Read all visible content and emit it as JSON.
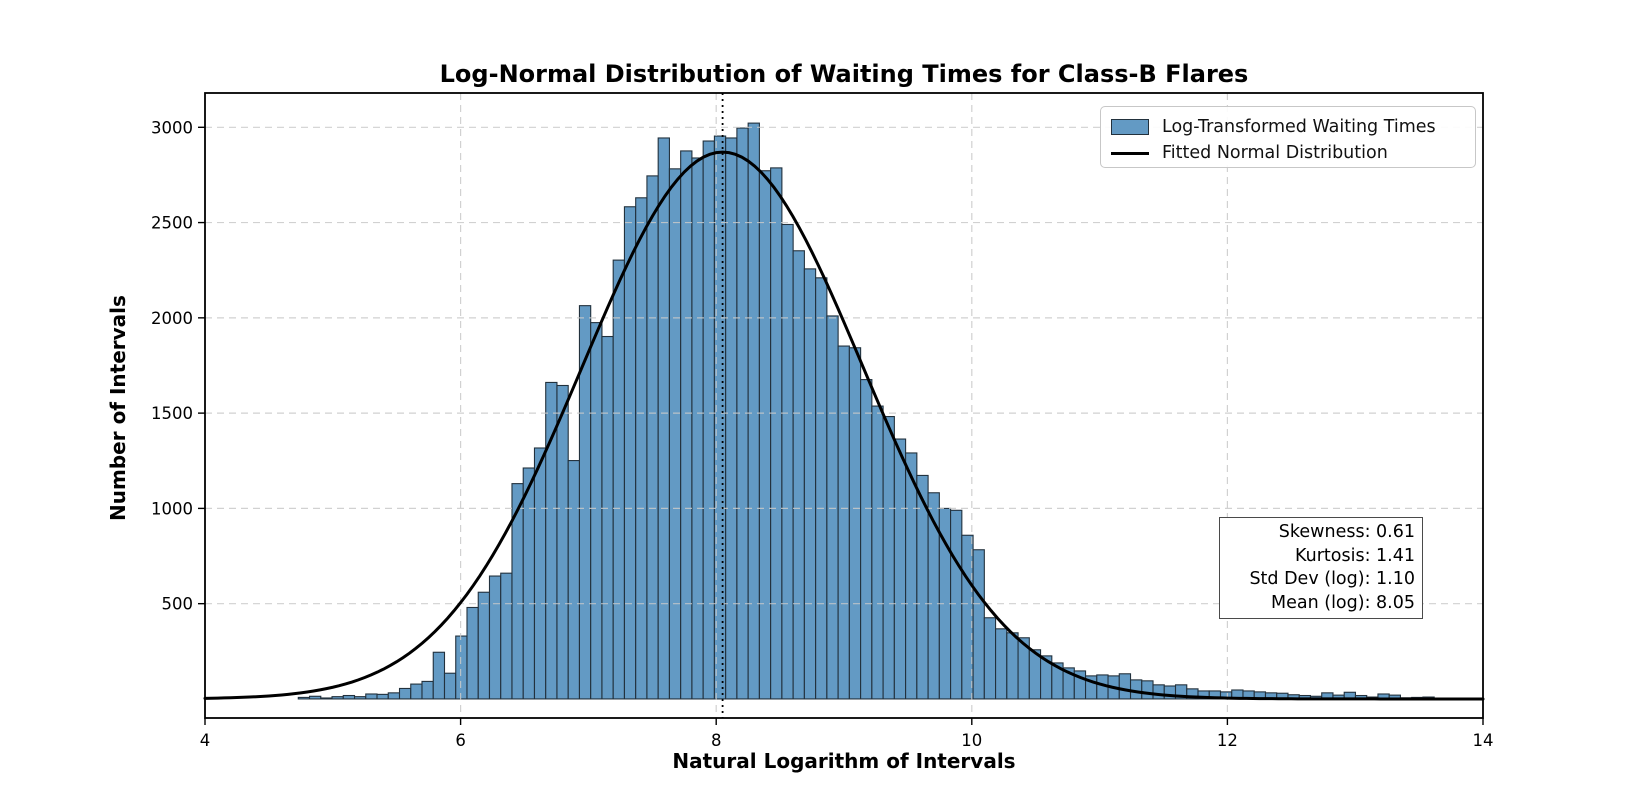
{
  "title": "Log-Normal Distribution of Waiting Times for Class-B Flares",
  "axes": {
    "xlabel": "Natural Logarithm of Intervals",
    "ylabel": "Number of Intervals",
    "x_ticks": [
      4,
      6,
      8,
      10,
      12,
      14
    ],
    "y_ticks": [
      500,
      1000,
      1500,
      2000,
      2500,
      3000
    ],
    "xlim": [
      4,
      14
    ],
    "ylim": [
      -100,
      3180
    ]
  },
  "legend": {
    "items": [
      {
        "label": "Log-Transformed Waiting Times",
        "swatch": "bar"
      },
      {
        "label": "Fitted Normal Distribution",
        "swatch": "line"
      }
    ]
  },
  "stats_box": {
    "lines": [
      "Skewness: 0.61",
      "Kurtosis: 1.41",
      "Std Dev (log): 1.10",
      "Mean (log): 8.05"
    ]
  },
  "colors": {
    "bar_fill": "#639ac4",
    "bar_edge": "#22313d",
    "curve": "#000000",
    "grid": "#c9c9c9",
    "mean_line": "#000000",
    "spine": "#000000",
    "tick_text": "#000000"
  },
  "chart_data": {
    "type": "bar",
    "subtype": "histogram_with_normal_fit",
    "title": "Log-Normal Distribution of Waiting Times for Class-B Flares",
    "xlabel": "Natural Logarithm of Intervals",
    "ylabel": "Number of Intervals",
    "xlim": [
      4,
      14
    ],
    "ylim": [
      -100,
      3180
    ],
    "x_ticks": [
      4,
      6,
      8,
      10,
      12,
      14
    ],
    "y_ticks": [
      500,
      1000,
      1500,
      2000,
      2500,
      3000
    ],
    "grid": true,
    "legend_position": "upper right",
    "bins": {
      "start": 4.73,
      "width": 0.088,
      "count": 101
    },
    "counts": [
      8,
      14,
      5,
      12,
      18,
      12,
      26,
      24,
      32,
      55,
      78,
      92,
      245,
      135,
      330,
      480,
      560,
      645,
      660,
      1130,
      1212,
      1317,
      1661,
      1645,
      1251,
      2064,
      1975,
      1902,
      2303,
      2583,
      2630,
      2745,
      2944,
      2782,
      2876,
      2839,
      2928,
      2954,
      2944,
      2996,
      3022,
      2772,
      2787,
      2490,
      2352,
      2257,
      2210,
      2010,
      1852,
      1843,
      1676,
      1537,
      1482,
      1364,
      1291,
      1173,
      1082,
      1000,
      990,
      859,
      783,
      426,
      368,
      347,
      321,
      258,
      226,
      189,
      163,
      147,
      121,
      126,
      121,
      132,
      100,
      95,
      74,
      68,
      74,
      53,
      42,
      42,
      37,
      47,
      42,
      37,
      32,
      30,
      22,
      18,
      14,
      32,
      20,
      35,
      18,
      10,
      26,
      20,
      6,
      8,
      10
    ],
    "series": [
      {
        "name": "Log-Transformed Waiting Times",
        "type": "histogram"
      },
      {
        "name": "Fitted Normal Distribution",
        "type": "line",
        "model": "normal",
        "mean": 8.05,
        "sigma": 1.1,
        "peak_height": 2870
      }
    ],
    "mean_line_x": 8.05,
    "stats": {
      "skewness": 0.61,
      "kurtosis": 1.41,
      "std_dev_log": 1.1,
      "mean_log": 8.05
    }
  }
}
